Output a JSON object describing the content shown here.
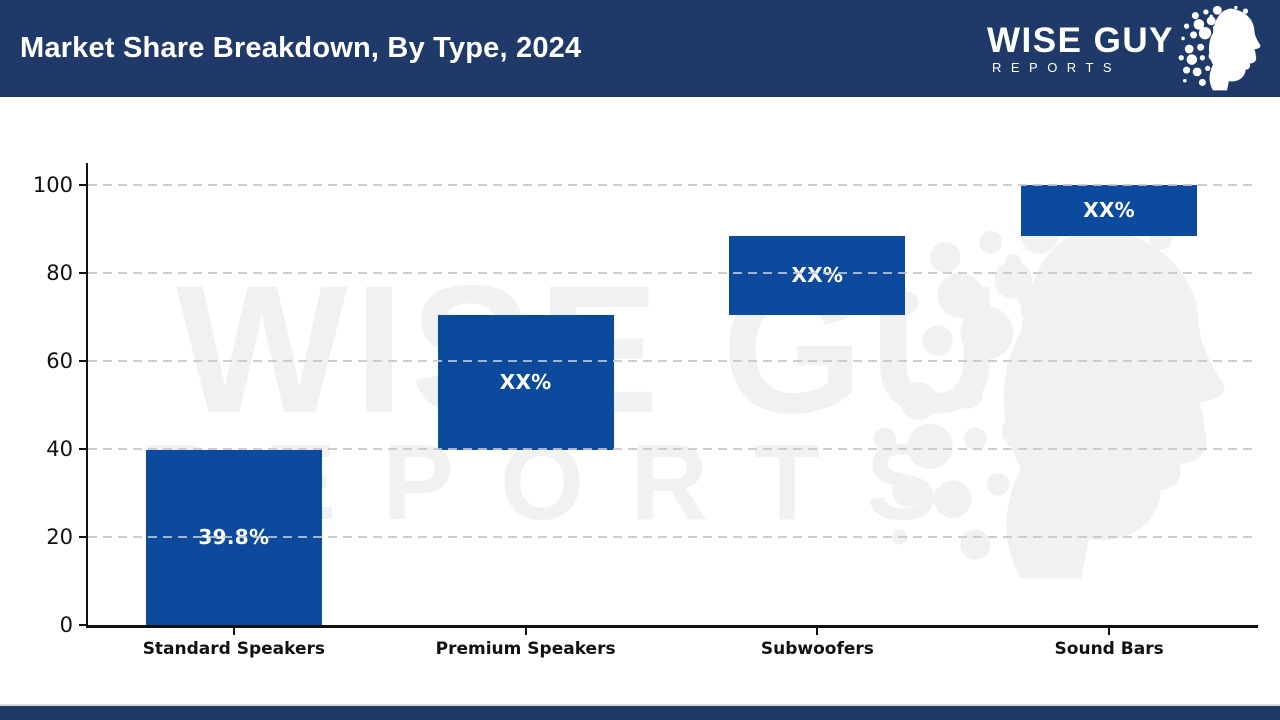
{
  "header": {
    "title": "Market Share Breakdown, By Type, 2024",
    "logo": {
      "wordmark": "WISE GUY",
      "subtext": "REPORTS"
    }
  },
  "watermark": {
    "line1": "WISE GUY",
    "line2": "REPORTS"
  },
  "chart_data": {
    "type": "bar",
    "subtype": "waterfall",
    "title": "Market Share Breakdown, By Type, 2024",
    "categories": [
      "Standard Speakers",
      "Premium Speakers",
      "Subwoofers",
      "Sound Bars"
    ],
    "segments": [
      {
        "category": "Standard Speakers",
        "start": 0,
        "end": 39.8,
        "label": "39.8%"
      },
      {
        "category": "Premium Speakers",
        "start": 39.8,
        "end": 70.5,
        "label": "XX%"
      },
      {
        "category": "Subwoofers",
        "start": 70.5,
        "end": 88.5,
        "label": "XX%"
      },
      {
        "category": "Sound Bars",
        "start": 88.5,
        "end": 100,
        "label": "XX%"
      }
    ],
    "ylim": [
      0,
      100
    ],
    "yticks": [
      0,
      20,
      40,
      60,
      80,
      100
    ],
    "xlabel": "",
    "ylabel": "",
    "grid": "horizontal-dashed",
    "legend": "none"
  },
  "colors": {
    "header_bg": "#1F3A68",
    "footer_bg": "#1F3A68",
    "bar": "#0C4A9E",
    "bar_label": "#FFFFFF",
    "watermark": "#F1F1F1",
    "grid": "#C6C6C6",
    "axis": "#111111"
  }
}
